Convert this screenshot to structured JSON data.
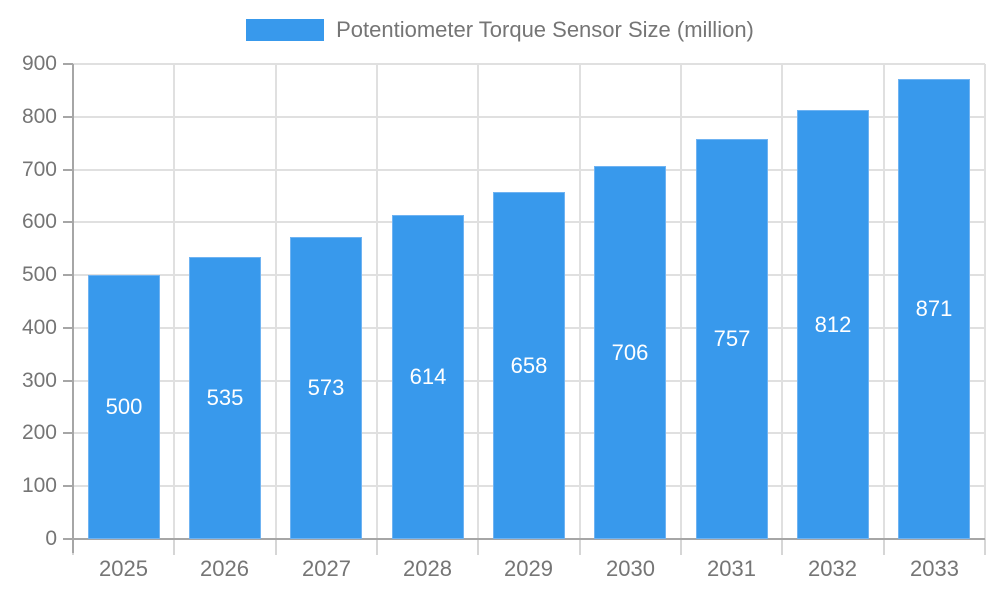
{
  "legend": {
    "label": "Potentiometer Torque Sensor Size (million)"
  },
  "chart_data": {
    "type": "bar",
    "title": "Potentiometer Torque Sensor Size (million)",
    "categories": [
      "2025",
      "2026",
      "2027",
      "2028",
      "2029",
      "2030",
      "2031",
      "2032",
      "2033"
    ],
    "values": [
      500,
      535,
      573,
      614,
      658,
      706,
      757,
      812,
      871
    ],
    "xlabel": "",
    "ylabel": "",
    "ylim": [
      0,
      900
    ],
    "ytick_step": 100,
    "yticks": [
      0,
      100,
      200,
      300,
      400,
      500,
      600,
      700,
      800,
      900
    ],
    "grid": true,
    "legend_position": "top",
    "value_labels": "centered-inside-bar"
  },
  "colors": {
    "bar": "#3899ec",
    "bar_border": "#6fb3f2",
    "grid": "#e0e0e0",
    "axis": "#a6a6a6",
    "xtick": "#d6d6d6",
    "text": "#757575",
    "value_text": "#ffffff",
    "background": "#ffffff"
  }
}
